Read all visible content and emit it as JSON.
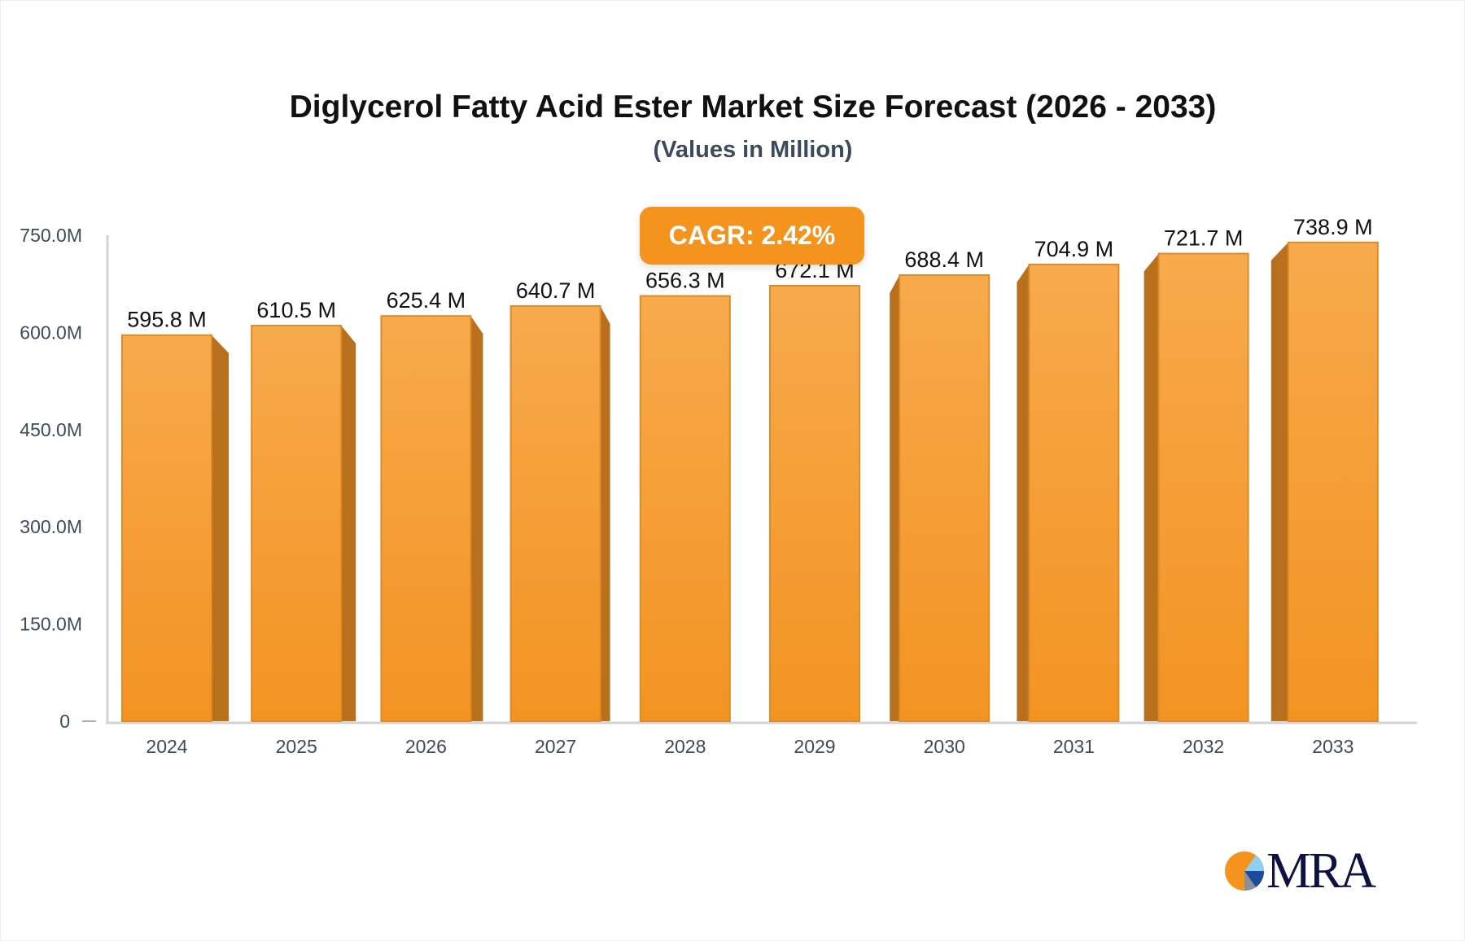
{
  "title": "Diglycerol Fatty Acid Ester Market Size Forecast (2026 - 2033)",
  "subtitle": "(Values in Million)",
  "cagr_label": "CAGR: 2.42%",
  "logo_text": "MRA",
  "colors": {
    "bar_front_top": "#F7AA4D",
    "bar_front_bottom": "#F39322",
    "bar_side": "#B8701C",
    "badge": "#F5931F",
    "axis": "#D0D3DA"
  },
  "chart_data": {
    "type": "bar",
    "title": "Diglycerol Fatty Acid Ester Market Size Forecast (2026 - 2033)",
    "subtitle": "(Values in Million)",
    "categories": [
      "2024",
      "2025",
      "2026",
      "2027",
      "2028",
      "2029",
      "2030",
      "2031",
      "2032",
      "2033"
    ],
    "values": [
      595.8,
      610.5,
      625.4,
      640.7,
      656.3,
      672.1,
      688.4,
      704.9,
      721.7,
      738.9
    ],
    "data_labels": [
      "595.8 M",
      "610.5 M",
      "625.4 M",
      "640.7 M",
      "656.3 M",
      "672.1 M",
      "688.4 M",
      "704.9 M",
      "721.7 M",
      "738.9 M"
    ],
    "yticks": [
      0,
      150,
      300,
      450,
      600,
      750
    ],
    "ytick_labels": [
      "0",
      "150.0M",
      "300.0M",
      "450.0M",
      "600.0M",
      "750.0M"
    ],
    "ylim": [
      0,
      750
    ],
    "xlabel": "",
    "ylabel": "",
    "grid": false,
    "annotation": "CAGR: 2.42%"
  }
}
